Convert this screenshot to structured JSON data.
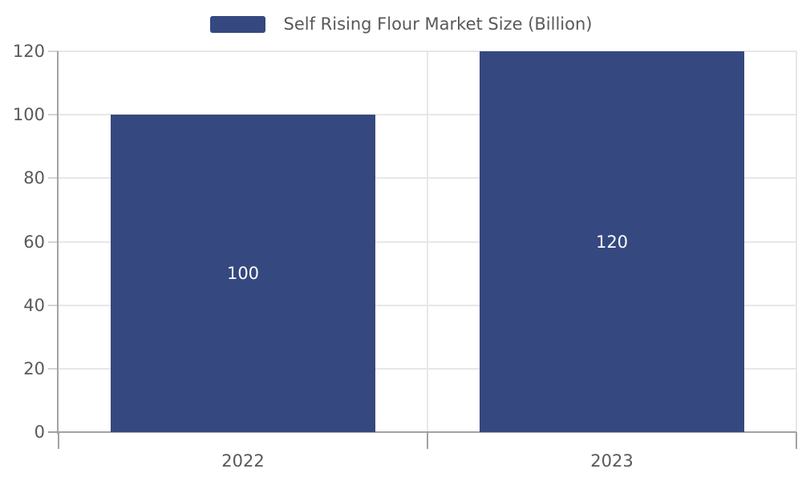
{
  "legend": {
    "label": "Self Rising Flour Market Size (Billion)"
  },
  "chart_data": {
    "type": "bar",
    "title": "Self Rising Flour Market Size (Billion)",
    "categories": [
      "2022",
      "2023"
    ],
    "values": [
      100,
      120
    ],
    "bar_labels": [
      "100",
      "120"
    ],
    "series": [
      {
        "name": "Self Rising Flour Market Size (Billion)",
        "values": [
          100,
          120
        ]
      }
    ],
    "xlabel": "",
    "ylabel": "",
    "ylim": [
      0,
      120
    ],
    "yticks": [
      0,
      20,
      40,
      60,
      80,
      100,
      120
    ],
    "grid": true,
    "legend_position": "top-center",
    "colors": {
      "bar": "#35487F",
      "grid_line": "#e7e7e7",
      "axis_line": "#a2a2a2",
      "y_tick": "#d4d4d4",
      "tick_label": "#595959",
      "bar_label": "#ffffff",
      "legend_text": "#595959",
      "background": "#ffffff"
    }
  }
}
